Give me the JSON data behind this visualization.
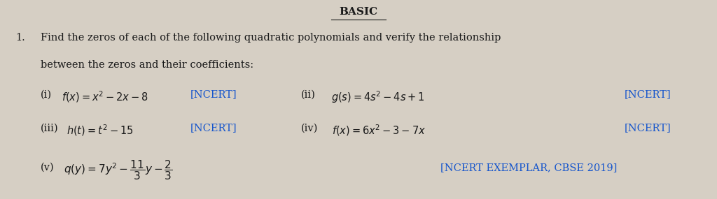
{
  "background_color": "#d6cfc4",
  "title": "BASIC",
  "title_fontsize": 11,
  "question_number": "1.",
  "question_text": "Find the zeros of each of the following quadratic polynomials and verify the relationship",
  "question_text2": "between the zeros and their coefficients:",
  "text_color": "#1a1a1a",
  "tag_color": "#1555cc",
  "font_size_main": 10.5
}
